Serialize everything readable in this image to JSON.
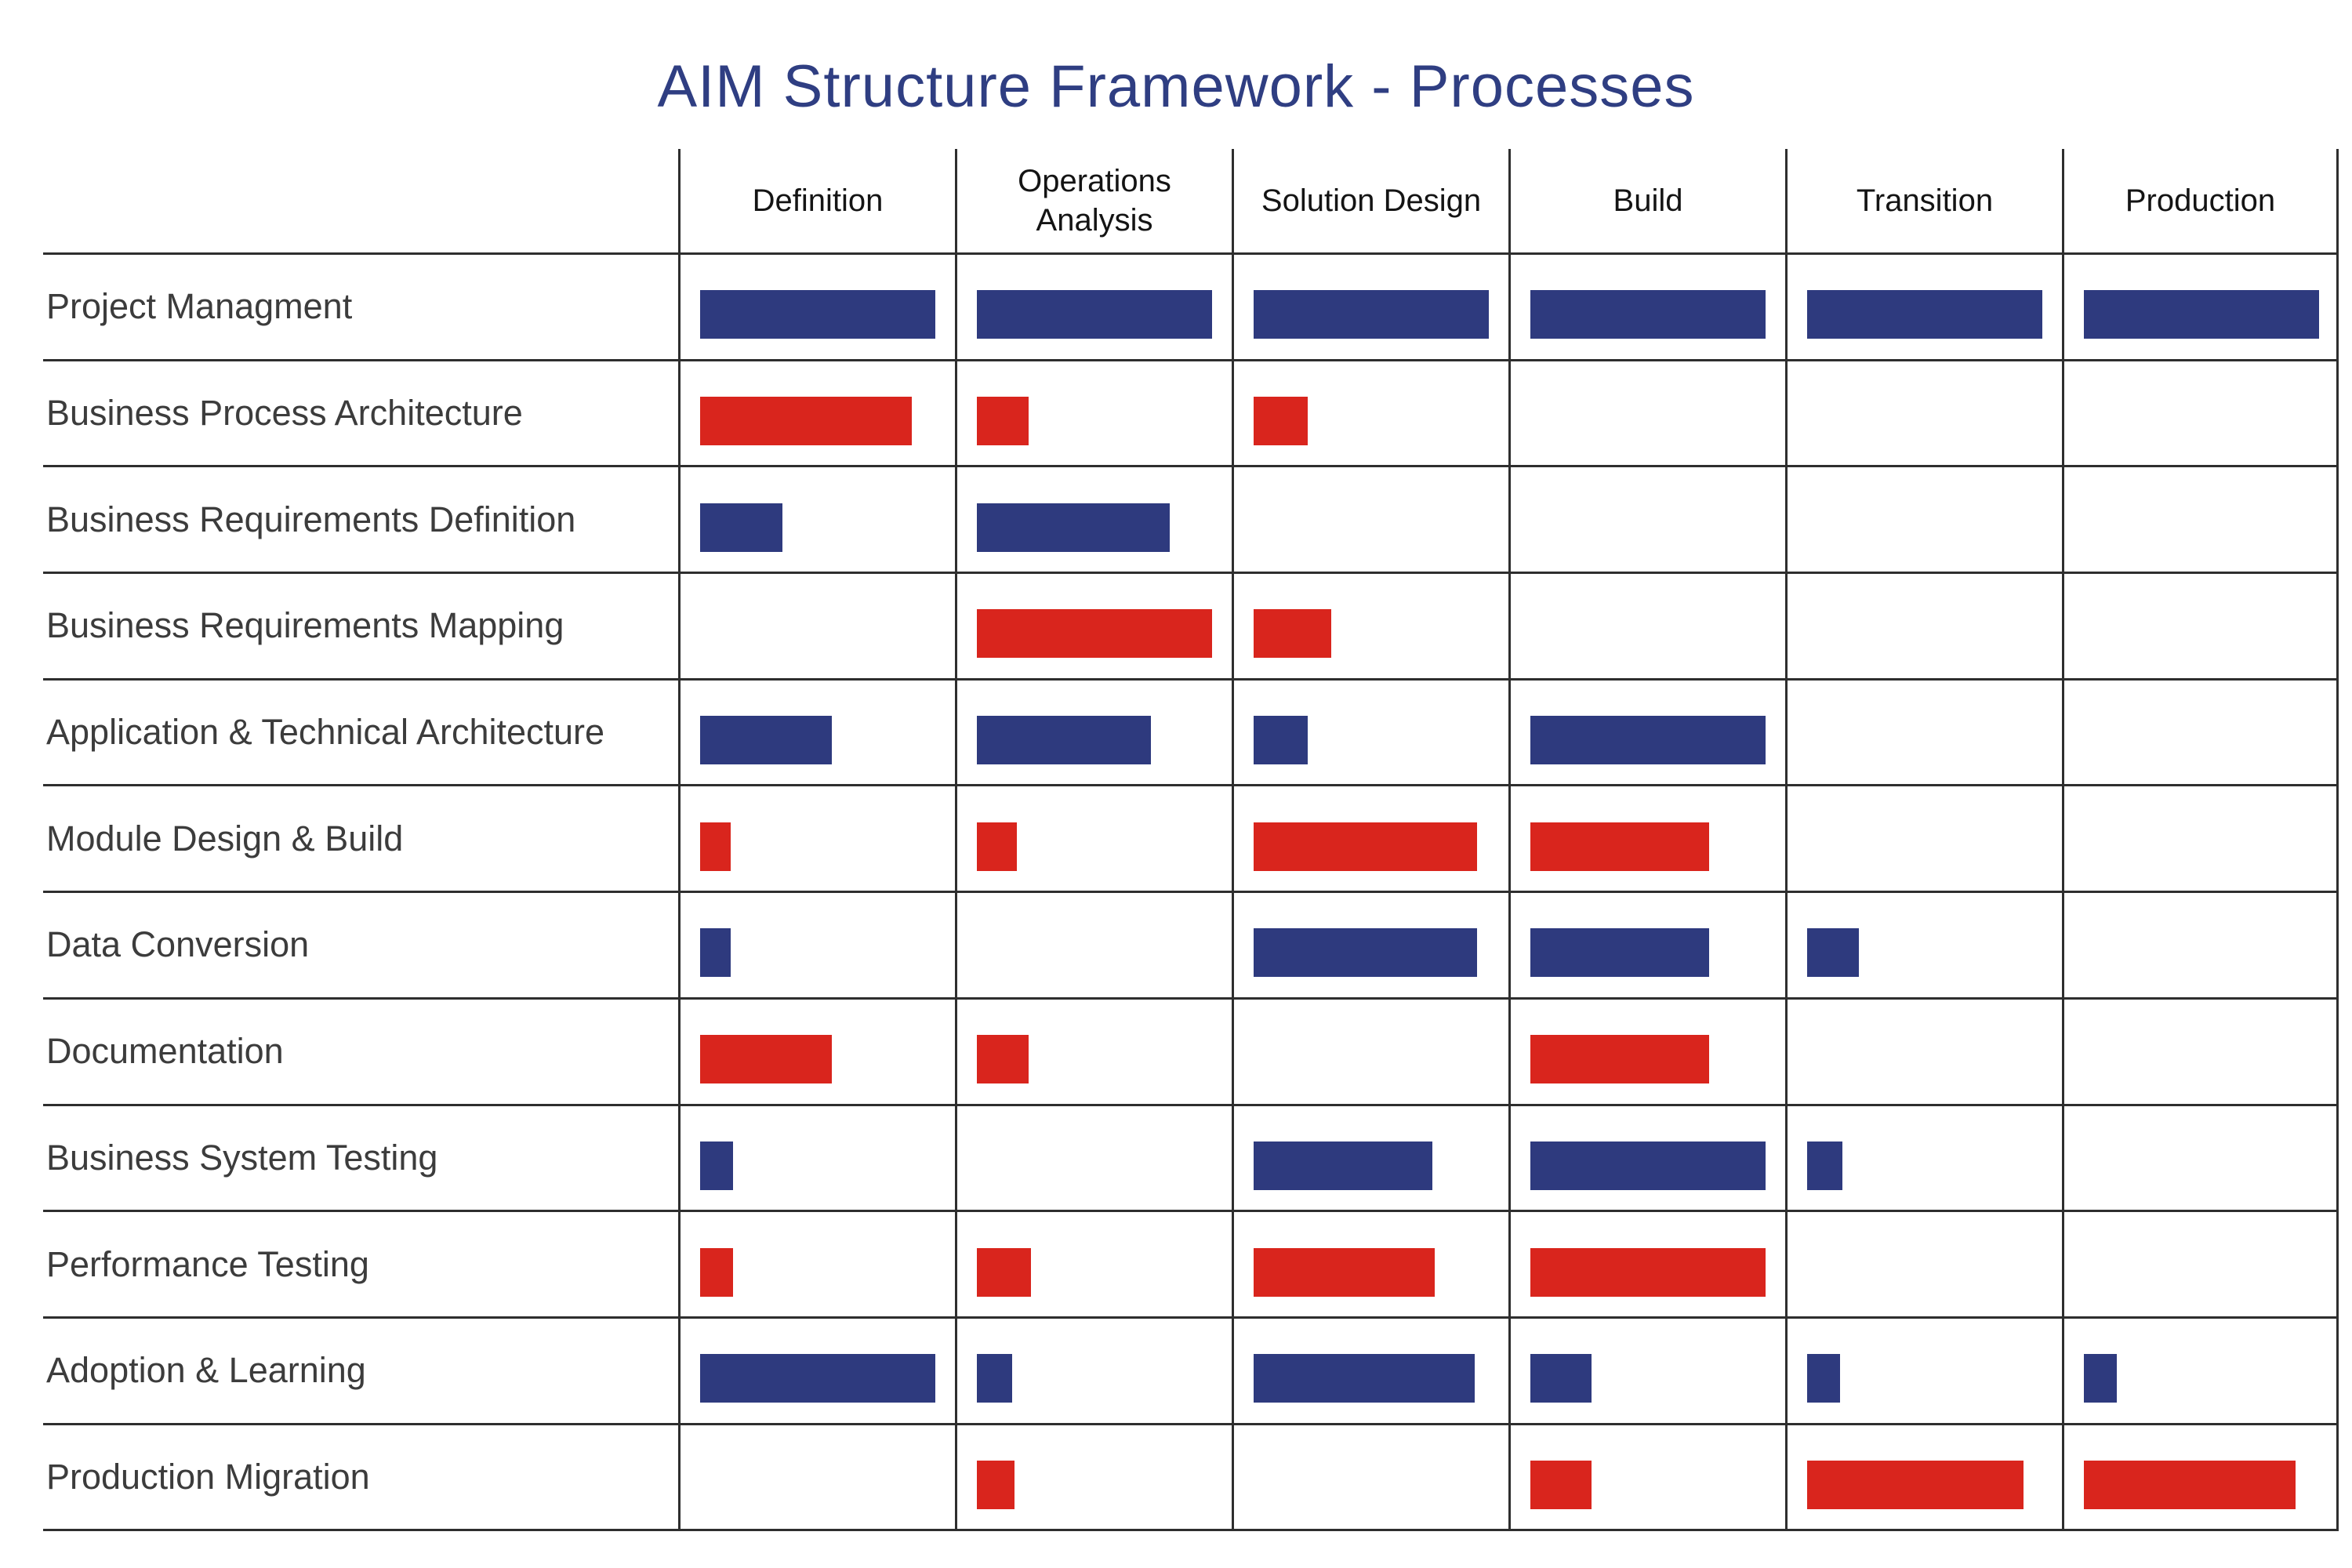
{
  "title": "AIM Structure Framework - Processes",
  "colors": {
    "title": "#2F3E82",
    "label": "#3C3C3C",
    "header": "#141414",
    "grid_line": "#2E2E2E",
    "blue": "#2E3A7E",
    "red": "#D9251D",
    "background": "#FFFFFF"
  },
  "chart_data": {
    "type": "bar",
    "variant": "gantt-matrix",
    "title": "AIM Structure Framework - Processes",
    "xlabel": "",
    "ylabel": "",
    "legend": "none",
    "grid": "row and column separator lines, no outer top border",
    "categories": [
      "Definition",
      "Operations Analysis",
      "Solution Design",
      "Build",
      "Transition",
      "Production"
    ],
    "value_meaning": "approximate fraction of the phase column spanned by the bar (0 = no bar present)",
    "series": [
      {
        "name": "Project Managment",
        "color": "#2E3A7E",
        "values": [
          1,
          1,
          1,
          1,
          1,
          1
        ]
      },
      {
        "name": "Business Process Architecture",
        "color": "#D9251D",
        "values": [
          0.9,
          0.22,
          0.23,
          0,
          0,
          0
        ]
      },
      {
        "name": "Business Requirements Definition",
        "color": "#2E3A7E",
        "values": [
          0.35,
          0.82,
          0,
          0,
          0,
          0
        ]
      },
      {
        "name": "Business Requirements Mapping",
        "color": "#D9251D",
        "values": [
          0,
          1,
          0.33,
          0,
          0,
          0
        ]
      },
      {
        "name": "Application & Technical Architecture",
        "color": "#2E3A7E",
        "values": [
          0.56,
          0.74,
          0.23,
          1,
          0,
          0
        ]
      },
      {
        "name": "Module Design & Build",
        "color": "#D9251D",
        "values": [
          0.13,
          0.17,
          0.95,
          0.76,
          0,
          0
        ]
      },
      {
        "name": "Data Conversion",
        "color": "#2E3A7E",
        "values": [
          0.13,
          0,
          0.95,
          0.76,
          0.22,
          0
        ]
      },
      {
        "name": "Documentation",
        "color": "#D9251D",
        "values": [
          0.56,
          0.22,
          0,
          0.76,
          0,
          0
        ]
      },
      {
        "name": "Business System Testing",
        "color": "#2E3A7E",
        "values": [
          0.14,
          0,
          0.76,
          1,
          0.15,
          0
        ]
      },
      {
        "name": "Performance Testing",
        "color": "#D9251D",
        "values": [
          0.14,
          0.23,
          0.77,
          1,
          0,
          0
        ]
      },
      {
        "name": "Adoption & Learning",
        "color": "#2E3A7E",
        "values": [
          1,
          0.15,
          0.94,
          0.26,
          0.14,
          0.14
        ]
      },
      {
        "name": "Production Migration",
        "color": "#D9251D",
        "values": [
          0,
          0.16,
          0,
          0.26,
          0.92,
          0.9
        ]
      }
    ]
  }
}
